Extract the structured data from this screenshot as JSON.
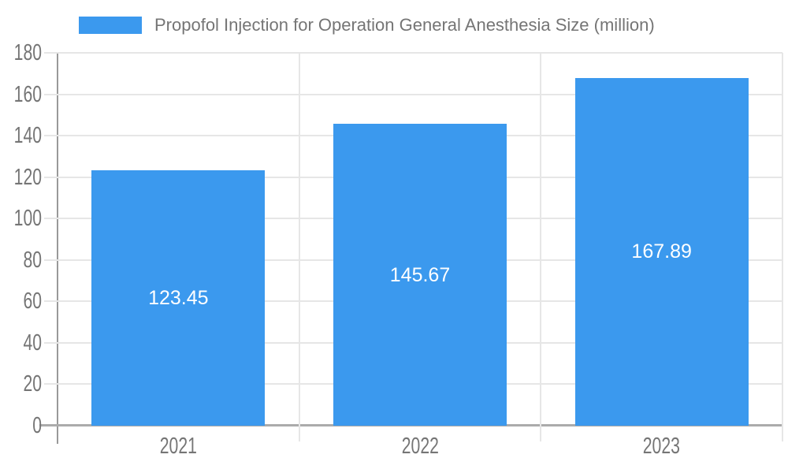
{
  "chart_data": {
    "type": "bar",
    "title": "Propofol Injection for Operation General Anesthesia Size (million)",
    "categories": [
      "2021",
      "2022",
      "2023"
    ],
    "values": [
      123.45,
      145.67,
      167.89
    ],
    "value_labels": [
      "123.45",
      "145.67",
      "167.89"
    ],
    "xlabel": "",
    "ylabel": "",
    "ylim": [
      0,
      180
    ],
    "yticks": [
      0,
      20,
      40,
      60,
      80,
      100,
      120,
      140,
      160,
      180
    ],
    "grid": true,
    "legend_position": "top",
    "legend_entries": [
      "Propofol Injection for Operation General Anesthesia Size (million)"
    ],
    "colors": {
      "bar": "#3B99EE",
      "bar_value_label": "#FFFFFF",
      "axis_text": "#757575",
      "gridline": "#E6E6E6",
      "y_axis_line": "#999999",
      "x_axis_line": "#ABABAB",
      "background": "#FFFFFF"
    }
  }
}
